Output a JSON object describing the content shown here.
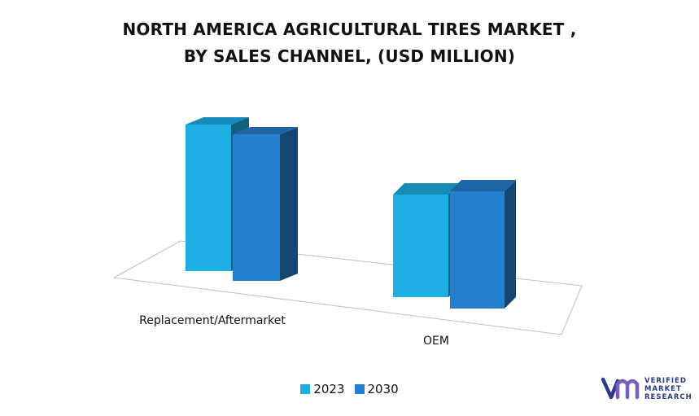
{
  "chart_data": {
    "type": "bar",
    "title_lines": [
      "NORTH AMERICA AGRICULTURAL TIRES MARKET ,",
      "BY SALES CHANNEL, (USD MILLION)"
    ],
    "categories": [
      "Replacement/Aftermarket",
      "OEM"
    ],
    "series": [
      {
        "name": "2023",
        "values": [
          100,
          70
        ],
        "color": "#1daee6"
      },
      {
        "name": "2030",
        "values": [
          100,
          80
        ],
        "color": "#2480cf"
      }
    ],
    "ylim": [
      0,
      100
    ],
    "grid": false,
    "legend_position": "bottom",
    "style": "3d-column"
  },
  "logo": {
    "icon": "vmr-logo-icon",
    "text_lines": [
      "VERIFIED",
      "MARKET",
      "RESEARCH"
    ],
    "color": "#2e3a87"
  }
}
